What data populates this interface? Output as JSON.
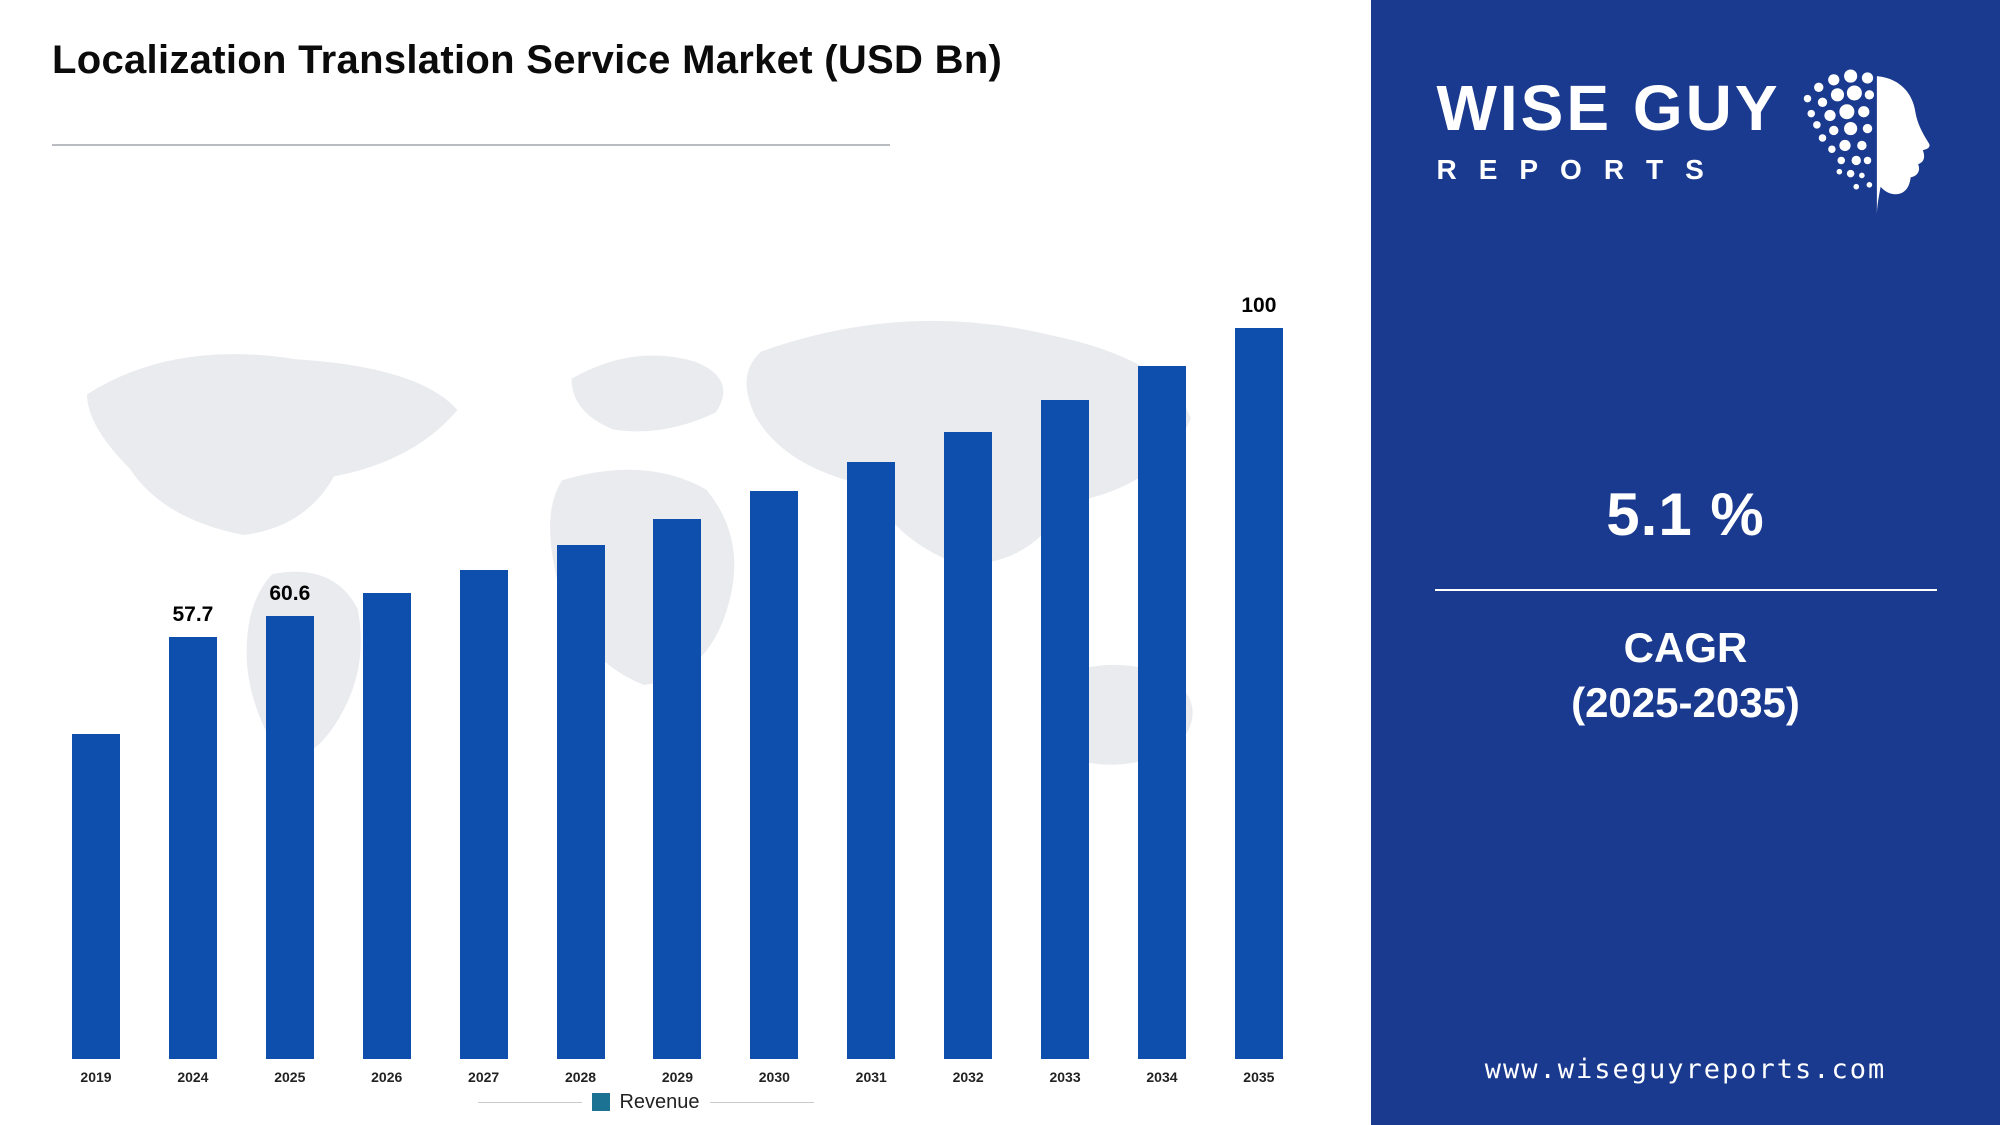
{
  "title": "Localization Translation Service Market (USD Bn)",
  "chart_data": {
    "type": "bar",
    "title": "Localization Translation Service Market (USD Bn)",
    "categories": [
      "2019",
      "2024",
      "2025",
      "2026",
      "2027",
      "2028",
      "2029",
      "2030",
      "2031",
      "2032",
      "2033",
      "2034",
      "2035"
    ],
    "values": [
      44.5,
      57.7,
      60.6,
      63.7,
      66.9,
      70.3,
      73.9,
      77.7,
      81.7,
      85.8,
      90.2,
      94.8,
      100
    ],
    "data_labels": [
      "",
      "57.7",
      "60.6",
      "",
      "",
      "",
      "",
      "",
      "",
      "",
      "",
      "",
      "100"
    ],
    "xlabel": "",
    "ylabel": "",
    "ylim": [
      0,
      100
    ],
    "grid": false,
    "bar_color": "#0e4fae",
    "legend": [
      {
        "label": "Revenue",
        "color": "#1c7293"
      }
    ],
    "legend_position": "bottom-center"
  },
  "sidebar": {
    "logo": {
      "line1": "WISE GUY",
      "line2": "REPORTS"
    },
    "stat_value": "5.1 %",
    "stat_label_1": "CAGR",
    "stat_label_2": "(2025-2035)",
    "website": "www.wiseguyreports.com",
    "bg_color": "#1a3a8f"
  },
  "colors": {
    "bar": "#0e4fae",
    "panel_background": "#1a3a8f",
    "legend_swatch": "#1c7293",
    "title_underline": "#b9bcc0",
    "map_fill": "#e9ebee"
  }
}
